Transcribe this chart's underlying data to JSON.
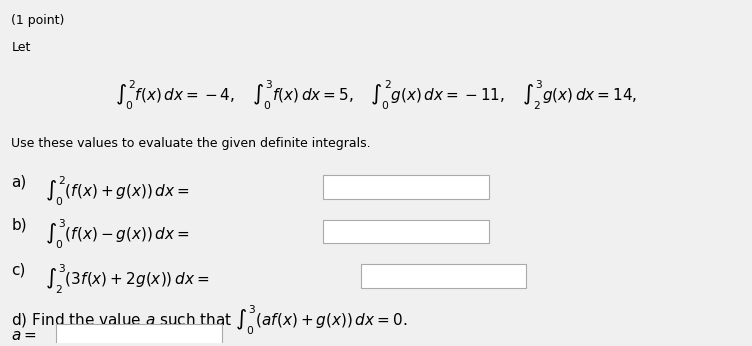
{
  "background_color": "#f0f0f0",
  "text_color": "#000000",
  "title_line": "(1 point)",
  "let_label": "Let",
  "integrals_line": "$\\int_0^2 f(x)\\,dx = -4, \\quad \\int_0^3 f(x)\\,dx = 5, \\quad \\int_0^2 g(x)\\,dx = -11, \\quad \\int_2^3 g(x)\\,dx = 14,$",
  "instruction": "Use these values to evaluate the given definite integrals.",
  "part_a_label": "a)",
  "part_a_integral": "$\\int_0^2 (f(x) + g(x))\\, dx =$",
  "part_b_label": "b)",
  "part_b_integral": "$\\int_0^3 (f(x) - g(x))\\, dx =$",
  "part_c_label": "c)",
  "part_c_integral": "$\\int_2^3 (3f(x) + 2g(x))\\, dx =$",
  "part_d_label": "d) Find the value $a$ such that $\\int_0^3 (af(x) + g(x))\\, dx = 0.$",
  "part_d_a_label": "$a =$",
  "box_color": "#ffffff",
  "box_edge_color": "#aaaaaa",
  "font_size_title": 9,
  "font_size_let": 9,
  "font_size_integral": 11,
  "font_size_instruction": 9,
  "font_size_parts": 11
}
